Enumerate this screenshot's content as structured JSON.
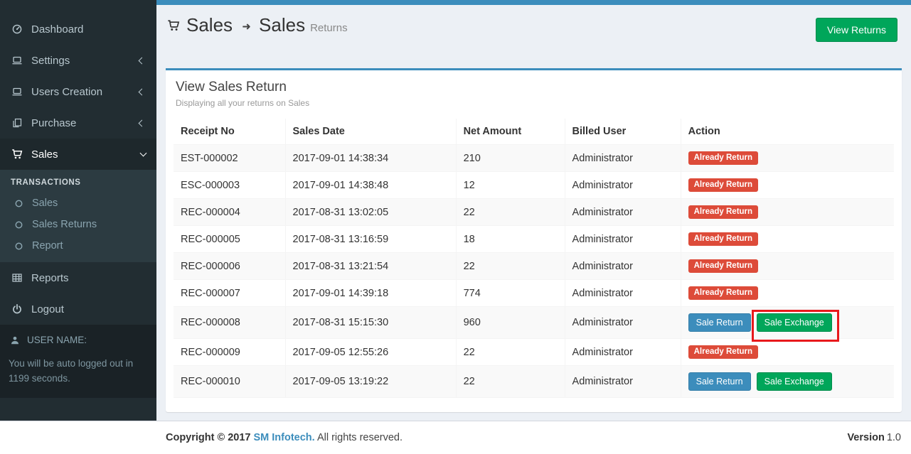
{
  "colors": {
    "accent_blue": "#3c8dbc",
    "green": "#00a65a",
    "red_badge": "#dd4b39",
    "annotation_red": "#e8191c",
    "sidebar_bg": "#222d32",
    "sidebar_active_bg": "#1e282c",
    "submenu_bg": "#2c3b41",
    "content_bg": "#ecf0f5"
  },
  "sidebar": {
    "menu": [
      {
        "label": "Dashboard",
        "icon": "dashboard",
        "chevron": null,
        "active": false
      },
      {
        "label": "Settings",
        "icon": "laptop",
        "chevron": "left",
        "active": false
      },
      {
        "label": "Users Creation",
        "icon": "laptop",
        "chevron": "left",
        "active": false
      },
      {
        "label": "Purchase",
        "icon": "copy",
        "chevron": "left",
        "active": false
      },
      {
        "label": "Sales",
        "icon": "cart",
        "chevron": "down",
        "active": true
      }
    ],
    "submenu_header": "TRANSACTIONS",
    "submenu": [
      {
        "label": "Sales",
        "icon": "circle"
      },
      {
        "label": "Sales Returns",
        "icon": "circle"
      },
      {
        "label": "Report",
        "icon": "circle"
      }
    ],
    "menu_bottom": [
      {
        "label": "Reports",
        "icon": "table"
      },
      {
        "label": "Logout",
        "icon": "power"
      }
    ],
    "user_panel": {
      "icon": "user",
      "title": "USER NAME:",
      "note": "You will be auto logged out in 1199 seconds."
    }
  },
  "header": {
    "title_primary": "Sales",
    "title_secondary": "Sales",
    "title_suffix": "Returns",
    "button": "View Returns"
  },
  "panel": {
    "title": "View Sales Return",
    "subtitle": "Displaying all your returns on Sales"
  },
  "table": {
    "columns": [
      "Receipt No",
      "Sales Date",
      "Net Amount",
      "Billed User",
      "Action"
    ],
    "column_widths_pct": [
      15.5,
      23.7,
      15.1,
      16.1,
      29.6
    ],
    "action_labels": {
      "already-return": "Already Return",
      "sale-return": "Sale Return",
      "sale-exchange": "Sale Exchange"
    },
    "rows": [
      {
        "receipt_no": "EST-000002",
        "sales_date": "2017-09-01 14:38:34",
        "net_amount": "210",
        "billed_user": "Administrator",
        "actions": [
          "already-return"
        ]
      },
      {
        "receipt_no": "ESC-000003",
        "sales_date": "2017-09-01 14:38:48",
        "net_amount": "12",
        "billed_user": "Administrator",
        "actions": [
          "already-return"
        ]
      },
      {
        "receipt_no": "REC-000004",
        "sales_date": "2017-08-31 13:02:05",
        "net_amount": "22",
        "billed_user": "Administrator",
        "actions": [
          "already-return"
        ]
      },
      {
        "receipt_no": "REC-000005",
        "sales_date": "2017-08-31 13:16:59",
        "net_amount": "18",
        "billed_user": "Administrator",
        "actions": [
          "already-return"
        ]
      },
      {
        "receipt_no": "REC-000006",
        "sales_date": "2017-08-31 13:21:54",
        "net_amount": "22",
        "billed_user": "Administrator",
        "actions": [
          "already-return"
        ]
      },
      {
        "receipt_no": "REC-000007",
        "sales_date": "2017-09-01 14:39:18",
        "net_amount": "774",
        "billed_user": "Administrator",
        "actions": [
          "already-return"
        ]
      },
      {
        "receipt_no": "REC-000008",
        "sales_date": "2017-08-31 15:15:30",
        "net_amount": "960",
        "billed_user": "Administrator",
        "actions": [
          "sale-return",
          "sale-exchange"
        ],
        "highlighted_action": "sale-exchange"
      },
      {
        "receipt_no": "REC-000009",
        "sales_date": "2017-09-05 12:55:26",
        "net_amount": "22",
        "billed_user": "Administrator",
        "actions": [
          "already-return"
        ]
      },
      {
        "receipt_no": "REC-000010",
        "sales_date": "2017-09-05 13:19:22",
        "net_amount": "22",
        "billed_user": "Administrator",
        "actions": [
          "sale-return",
          "sale-exchange"
        ]
      }
    ]
  },
  "footer": {
    "copyright_prefix": "Copyright © 2017",
    "company": "SM Infotech.",
    "copyright_suffix": "All rights reserved.",
    "version_label": "Version",
    "version_value": "1.0"
  }
}
